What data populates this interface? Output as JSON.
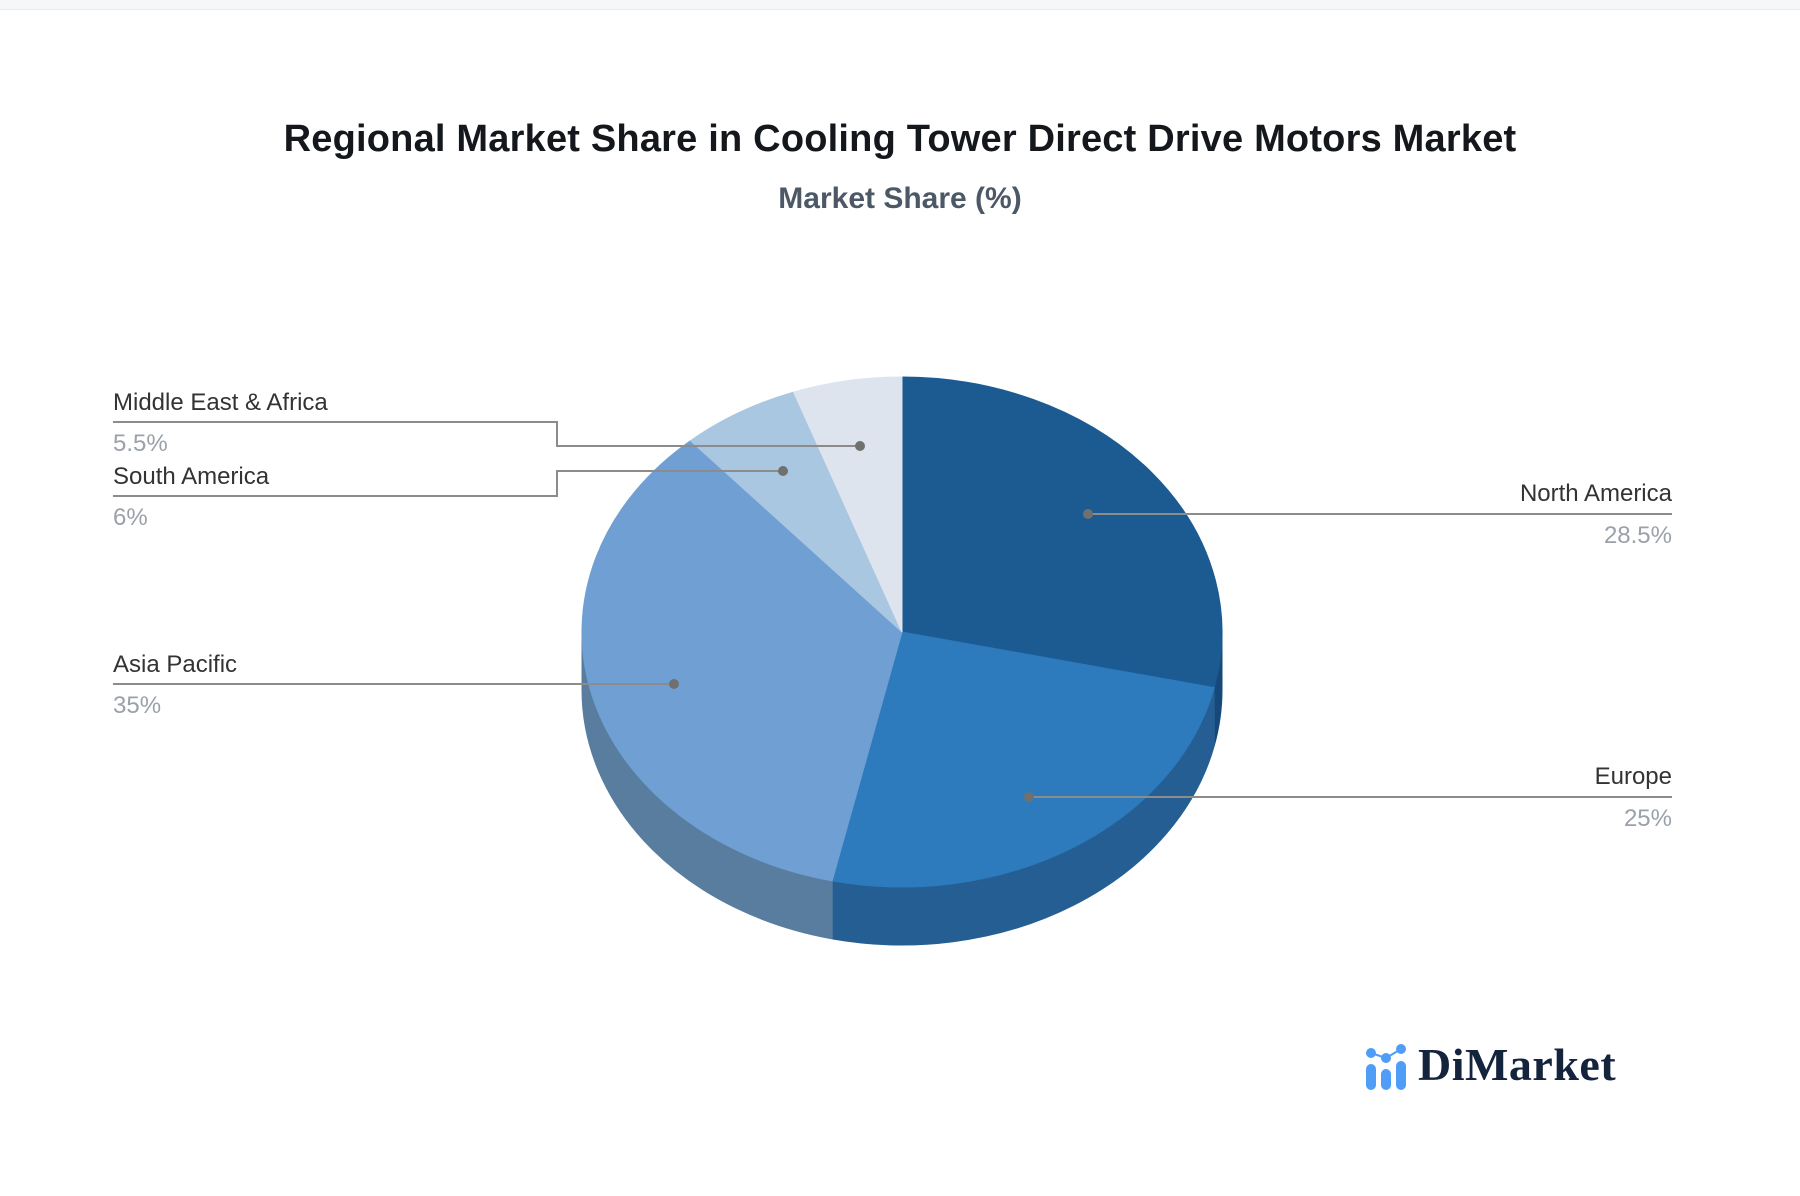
{
  "header": {
    "title": "Regional Market Share in Cooling Tower Direct Drive Motors Market",
    "subtitle": "Market Share (%)"
  },
  "chart_data": {
    "type": "pie",
    "title": "Regional Market Share in Cooling Tower Direct Drive Motors Market",
    "subtitle": "Market Share (%)",
    "unit": "%",
    "style": "3d-pie",
    "direction": "clockwise",
    "start_angle_deg": 0,
    "legend_position": "callout-labels",
    "slices": [
      {
        "label": "North America",
        "value": 28.5,
        "display_value": "28.5%",
        "color": "#1c5a92",
        "side_color": "#16497a"
      },
      {
        "label": "Europe",
        "value": 25,
        "display_value": "25%",
        "color": "#2d7abc",
        "side_color": "#245e92"
      },
      {
        "label": "Asia Pacific",
        "value": 35,
        "display_value": "35%",
        "color": "#6f9fd3",
        "side_color": "#587d9f"
      },
      {
        "label": "South America",
        "value": 6,
        "display_value": "6%",
        "color": "#aac7e2",
        "side_color": "#8aa9c6"
      },
      {
        "label": "Middle East & Africa",
        "value": 5.5,
        "display_value": "5.5%",
        "color": "#dde4ee",
        "side_color": "#bcc8d8"
      }
    ]
  },
  "branding": {
    "name": "DiMarket",
    "icon": "bar-chart-logo-icon",
    "icon_color": "#4f9df7",
    "text_color": "#15243d"
  },
  "styles": {
    "background": "#ffffff",
    "title_color": "#14181d",
    "subtitle_color": "#4c5866",
    "label_color": "#333333",
    "value_color": "#9aa1a9",
    "callout_line_color": "#8c8c8c",
    "callout_dot_color": "#707070"
  }
}
